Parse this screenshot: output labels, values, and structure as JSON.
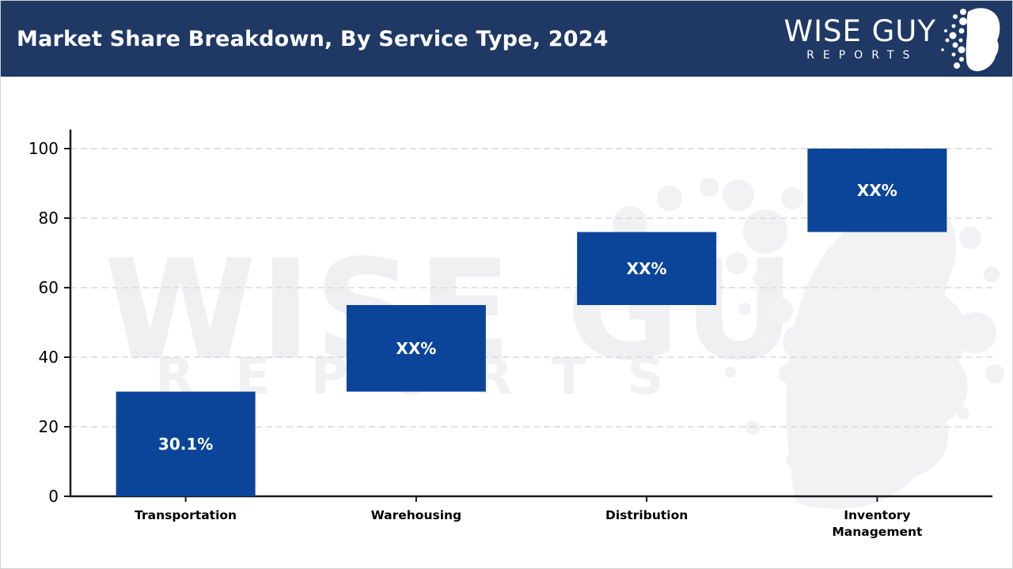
{
  "header": {
    "title": "Market Share Breakdown, By Service Type, 2024"
  },
  "logo": {
    "primary": "WISE GUY",
    "secondary": "REPORTS"
  },
  "watermark": {
    "primary": "WISE GU",
    "secondary": "REPORTS"
  },
  "chart_data": {
    "type": "bar",
    "subtype": "waterfall",
    "title": "Market Share Breakdown, By Service Type, 2024",
    "categories": [
      "Transportation",
      "Warehousing",
      "Distribution",
      "Inventory Management"
    ],
    "segments": [
      {
        "category": "Transportation",
        "start": 0,
        "end": 30.1,
        "label": "30.1%"
      },
      {
        "category": "Warehousing",
        "start": 30.1,
        "end": 55,
        "label": "XX%"
      },
      {
        "category": "Distribution",
        "start": 55,
        "end": 76,
        "label": "XX%"
      },
      {
        "category": "Inventory Management",
        "start": 76,
        "end": 100,
        "label": "XX%"
      }
    ],
    "xlabel": "",
    "ylabel": "",
    "ylim": [
      0,
      100
    ],
    "yticks": [
      0,
      20,
      40,
      60,
      80,
      100
    ],
    "grid": "horizontal-dashed",
    "legend": "none",
    "bar_color": "#0b4599",
    "bar_label_color": "#ffffff",
    "axis_color": "#1a1a1a",
    "tick_label_color": "#000000",
    "gridline_color": "#d9d9d9",
    "header_color": "#1f3864"
  }
}
